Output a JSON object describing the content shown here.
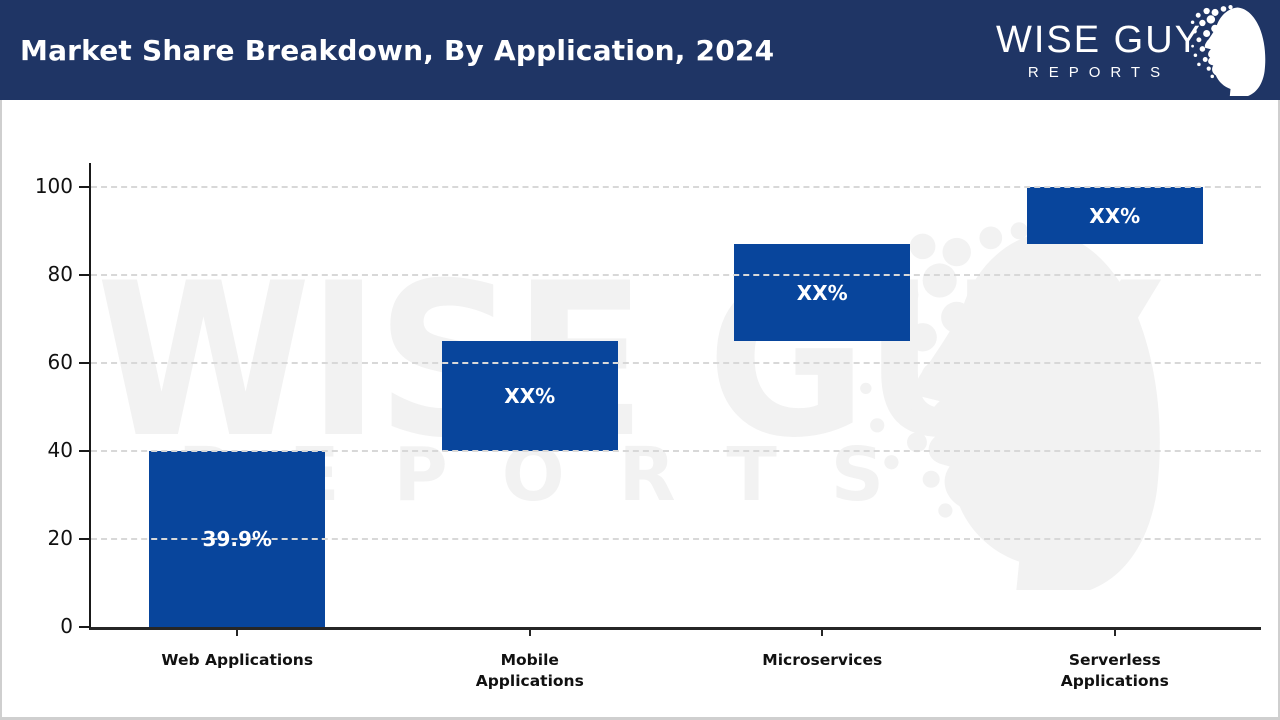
{
  "header": {
    "title": "Market Share Breakdown, By Application, 2024",
    "logo_line1": "WISE GUY",
    "logo_line2": "REPORTS"
  },
  "watermark": {
    "line1": "WISE GUY",
    "line2": "REPORTS"
  },
  "chart_data": {
    "type": "bar",
    "subtype": "waterfall",
    "title": "Market Share Breakdown, By Application, 2024",
    "categories": [
      "Web Applications",
      "Mobile Applications",
      "Microservices",
      "Serverless Applications"
    ],
    "category_lines": [
      [
        "Web Applications"
      ],
      [
        "Mobile",
        "Applications"
      ],
      [
        "Microservices"
      ],
      [
        "Serverless",
        "Applications"
      ]
    ],
    "bars": [
      {
        "category": "Web Applications",
        "start": 0,
        "end": 39.9,
        "label": "39.9%"
      },
      {
        "category": "Mobile Applications",
        "start": 39.9,
        "end": 64.9,
        "label": "XX%"
      },
      {
        "category": "Microservices",
        "start": 64.9,
        "end": 86.9,
        "label": "XX%"
      },
      {
        "category": "Serverless Applications",
        "start": 86.9,
        "end": 100,
        "label": "XX%"
      }
    ],
    "yticks": [
      0,
      20,
      40,
      60,
      80,
      100
    ],
    "ylim": [
      0,
      105.4
    ],
    "xlabel": "",
    "ylabel": "",
    "grid": "horizontal-dashed",
    "legend": "none",
    "bar_color": "#08459c",
    "bar_label_color": "#ffffff"
  },
  "colors": {
    "header_bg": "#1f3565",
    "bar": "#08459c",
    "grid": "#d8d8d8",
    "axis": "#1a1a1a",
    "watermark": "#f2f2f2",
    "frame_border": "#cfcfcf"
  }
}
